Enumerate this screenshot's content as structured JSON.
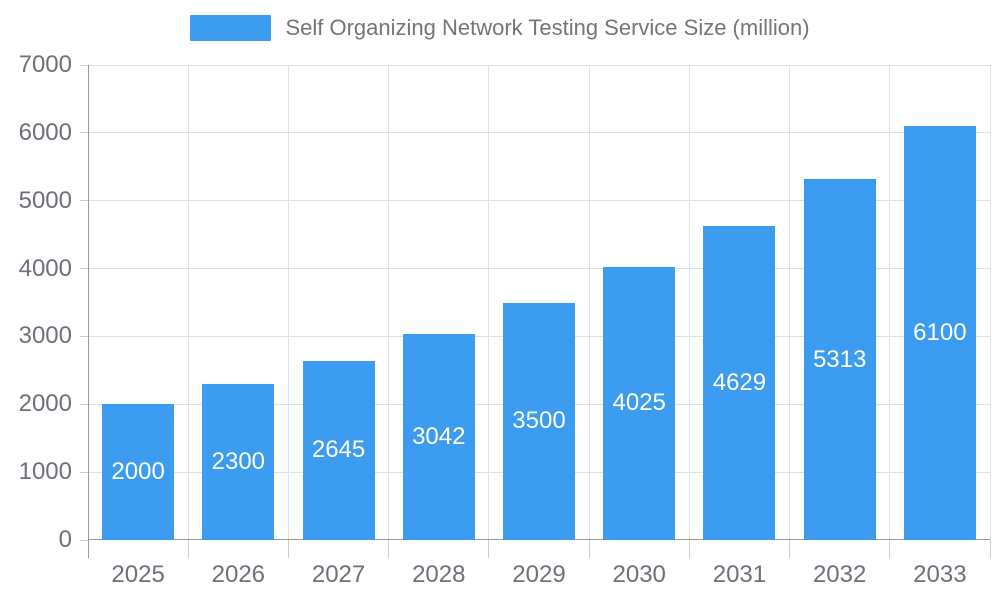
{
  "chart_data": {
    "type": "bar",
    "title": "Self Organizing Network Testing Service Size (million)",
    "legend": [
      "Self Organizing Network Testing Service Size (million)"
    ],
    "legend_position": "top",
    "categories": [
      "2025",
      "2026",
      "2027",
      "2028",
      "2029",
      "2030",
      "2031",
      "2032",
      "2033"
    ],
    "values": [
      2000,
      2300,
      2645,
      3042,
      3500,
      4025,
      4629,
      5313,
      6100
    ],
    "xlabel": "",
    "ylabel": "",
    "ylim": [
      0,
      7000
    ],
    "y_ticks": [
      0,
      1000,
      2000,
      3000,
      4000,
      5000,
      6000,
      7000
    ],
    "grid": "horizontal and vertical light gridlines",
    "bar_labels_inside": true
  },
  "colors": {
    "bar": "#3C9DF0",
    "bar_label_text": "#ffffff",
    "title_text": "#757575",
    "axis_label_text": "#6E7079",
    "grid_line": "#E0E0E0",
    "axis_line": "#999999",
    "tick_line": "#cccccc",
    "background": "#ffffff"
  }
}
